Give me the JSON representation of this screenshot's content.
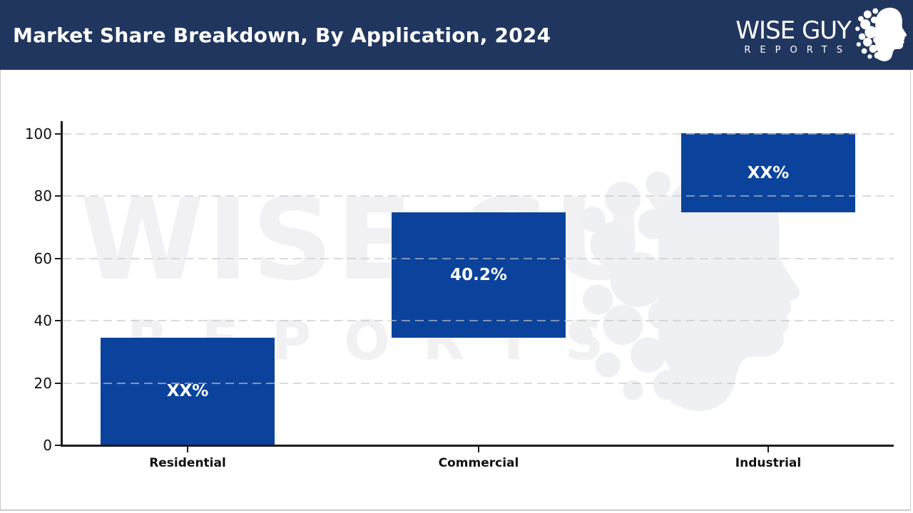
{
  "header": {
    "title": "Market Share Breakdown, By Application, 2024",
    "bg_color": "#21365f",
    "logo": {
      "line1": "WISE GUY",
      "line2": "REPORTS"
    }
  },
  "watermark": {
    "line1": "WISE GUY",
    "line2": "REPORTS"
  },
  "chart_data": {
    "type": "bar",
    "subtype": "stacked-waterfall",
    "title": "Market Share Breakdown, By Application, 2024",
    "categories": [
      "Residential",
      "Commercial",
      "Industrial"
    ],
    "bars": [
      {
        "category": "Residential",
        "start": 0,
        "end": 34.3,
        "value": 34.3,
        "label": "XX%"
      },
      {
        "category": "Commercial",
        "start": 34.3,
        "end": 74.5,
        "value": 40.2,
        "label": "40.2%"
      },
      {
        "category": "Industrial",
        "start": 74.5,
        "end": 100,
        "value": 25.5,
        "label": "XX%"
      }
    ],
    "xlabel": "",
    "ylabel": "",
    "ylim": [
      0,
      100
    ],
    "yticks": [
      0,
      20,
      40,
      60,
      80,
      100
    ],
    "grid": "dashed-horizontal",
    "legend": "none",
    "bar_color": "#0b439c",
    "grid_color": "#d9d9d9",
    "axis_color": "#1c1c1c"
  }
}
